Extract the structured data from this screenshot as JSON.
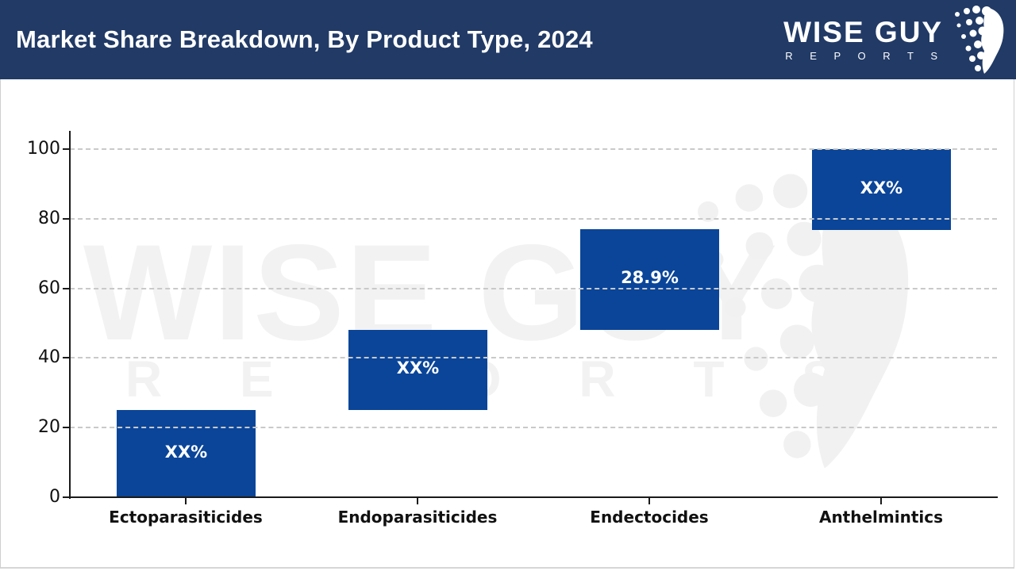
{
  "header": {
    "title": "Market Share Breakdown, By Product Type, 2024",
    "bg_color": "#213a66",
    "logo": {
      "name": "WISE GUY",
      "sub": "R E P O R T S"
    }
  },
  "watermark": {
    "line1": "WISE GUY",
    "line2": "R E P O R T S",
    "color": "#f2f2f2"
  },
  "chart_data": {
    "type": "bar",
    "subtype": "floating-segment (cumulative share progression, waterfall-like)",
    "title": "Market Share Breakdown, By Product Type, 2024",
    "categories": [
      "Ectoparasiticides",
      "Endoparasiticides",
      "Endectocides",
      "Anthelmintics"
    ],
    "segments": [
      {
        "category": "Ectoparasiticides",
        "start": 0,
        "end": 25.1,
        "value_label": "XX%"
      },
      {
        "category": "Endoparasiticides",
        "start": 25.1,
        "end": 48.0,
        "value_label": "XX%"
      },
      {
        "category": "Endectocides",
        "start": 48.0,
        "end": 76.9,
        "value_label": "28.9%"
      },
      {
        "category": "Anthelmintics",
        "start": 76.9,
        "end": 100.1,
        "value_label": "XX%"
      }
    ],
    "xlabel": "",
    "ylabel": "",
    "ylim": [
      0,
      100
    ],
    "yticks": [
      0,
      20,
      40,
      60,
      80,
      100
    ],
    "legend": "none",
    "grid": {
      "axis": "y",
      "style": "dashed",
      "drawn_over_bars": true
    },
    "colors": {
      "bar": "#0a4599",
      "bar_label": "#ffffff",
      "axis_line": "#1a1a1a",
      "grid_line": "#c9c9c9",
      "tick_label": "#111111"
    }
  }
}
